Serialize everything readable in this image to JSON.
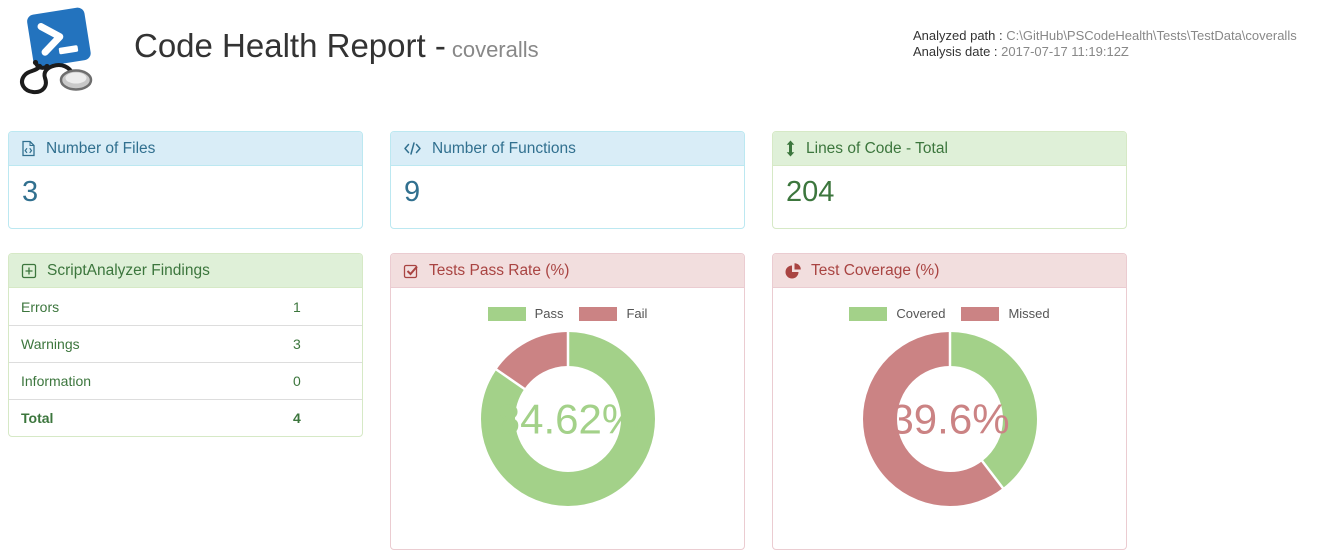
{
  "header": {
    "title": "Code Health Report -",
    "subtitle": "coveralls",
    "analyzed_path_label": "Analyzed path :",
    "analyzed_path": "C:\\GitHub\\PSCodeHealth\\Tests\\TestData\\coveralls",
    "analysis_date_label": "Analysis date :",
    "analysis_date": "2017-07-17 11:19:12Z",
    "logo": "powershell-stethoscope-logo"
  },
  "summary_cards": [
    {
      "label": "Number of Files",
      "value": "3",
      "icon": "file-code-icon",
      "theme": "info"
    },
    {
      "label": "Number of Functions",
      "value": "9",
      "icon": "code-icon",
      "theme": "info"
    },
    {
      "label": "Lines of Code - Total",
      "value": "204",
      "icon": "arrows-vertical-icon",
      "theme": "success"
    }
  ],
  "findings_table": {
    "title": "ScriptAnalyzer Findings",
    "icon": "plus-square-icon",
    "theme": "success",
    "rows": [
      {
        "label": "Errors",
        "value": "1",
        "bold": false
      },
      {
        "label": "Warnings",
        "value": "3",
        "bold": false
      },
      {
        "label": "Information",
        "value": "0",
        "bold": false
      },
      {
        "label": "Total",
        "value": "4",
        "bold": true
      }
    ]
  },
  "colors": {
    "info_bg": "#d9edf7",
    "info_border": "#bce8f1",
    "info_text": "#31708f",
    "success_bg": "#dff0d8",
    "success_border": "#d6e9c6",
    "success_text": "#3c763d",
    "danger_bg": "#f2dede",
    "danger_border": "#ebccd1",
    "danger_text": "#a94442",
    "chart_green": "#a3d189",
    "chart_red": "#cb8384"
  },
  "chart_data": [
    {
      "type": "pie",
      "title": "Tests Pass Rate (%)",
      "icon": "check-square-icon",
      "labels": [
        "Pass",
        "Fail"
      ],
      "values": [
        84.62,
        15.38
      ],
      "colors": [
        "#a3d189",
        "#cb8384"
      ],
      "center_text": "84.62%",
      "center_color": "#a3d189",
      "legend_position": "top",
      "donut": true
    },
    {
      "type": "pie",
      "title": "Test Coverage (%)",
      "icon": "pie-chart-icon",
      "labels": [
        "Covered",
        "Missed"
      ],
      "values": [
        39.6,
        60.4
      ],
      "colors": [
        "#a3d189",
        "#cb8384"
      ],
      "center_text": "39.6%",
      "center_color": "#cb8384",
      "legend_position": "top",
      "donut": true
    }
  ]
}
